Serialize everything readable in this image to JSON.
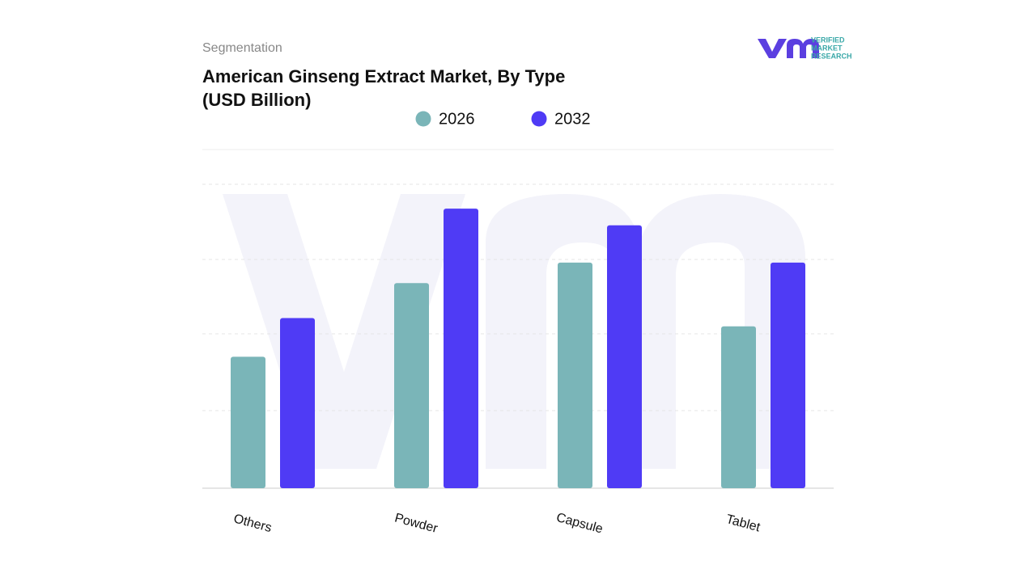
{
  "header": {
    "section": "Segmentation",
    "logo_line1": "VERIFIED",
    "logo_line2": "MARKET",
    "logo_line3": "RESEARCH"
  },
  "chart_data": {
    "type": "bar",
    "title_line1": "American Ginseng Extract Market, By Type",
    "title_line2": "(USD Billion)",
    "categories": [
      "Others",
      "Powder",
      "Capsule",
      "Tablet"
    ],
    "series": [
      {
        "name": "2026",
        "color": "#7ab5b8",
        "values": [
          1.73,
          2.7,
          2.97,
          2.13
        ]
      },
      {
        "name": "2032",
        "color": "#4f3bf5",
        "values": [
          2.24,
          3.68,
          3.46,
          2.97
        ]
      }
    ],
    "ylim": [
      0,
      4
    ]
  }
}
